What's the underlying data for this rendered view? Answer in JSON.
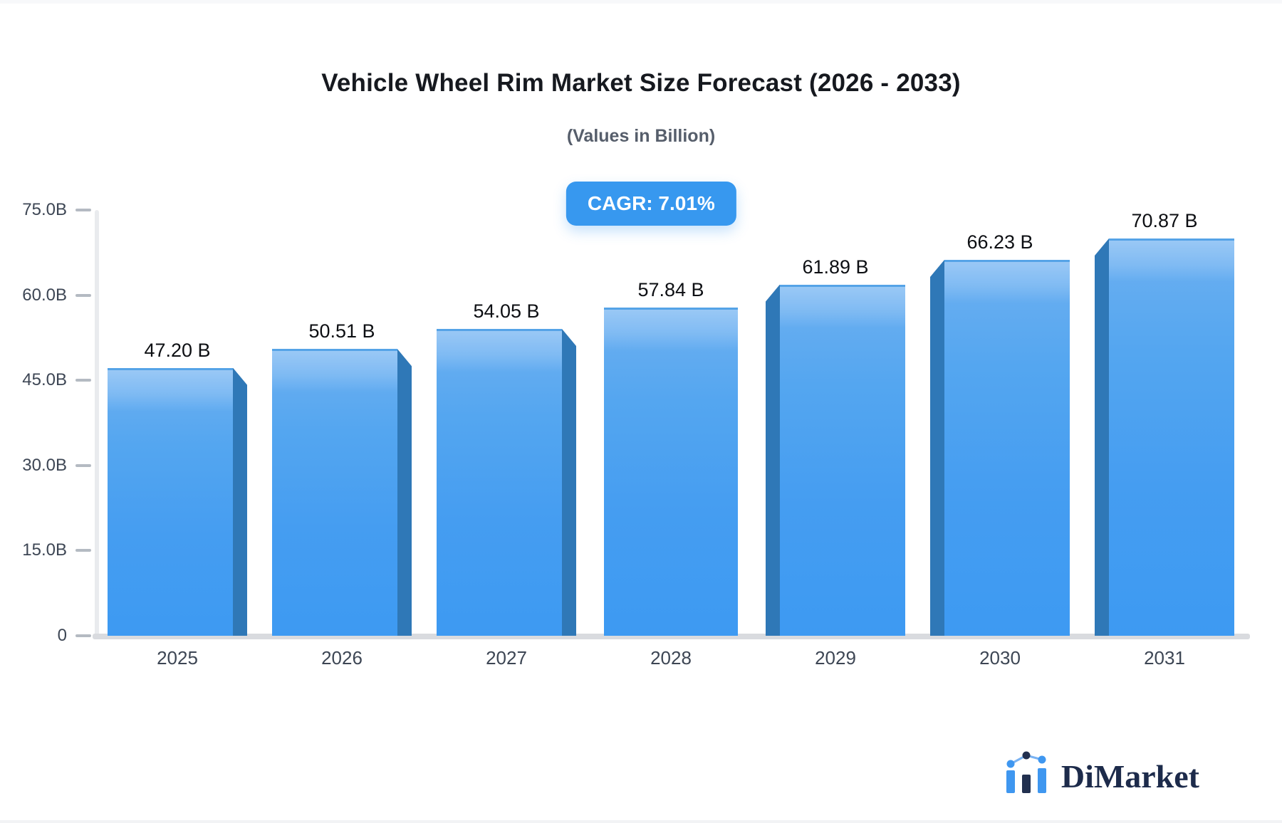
{
  "chart_data": {
    "type": "bar",
    "title": "Vehicle Wheel Rim Market Size Forecast (2026 - 2033)",
    "subtitle": "(Values in Billion)",
    "badge": "CAGR: 7.01%",
    "categories": [
      "2025",
      "2026",
      "2027",
      "2028",
      "2029",
      "2030",
      "2031"
    ],
    "values": [
      47.2,
      50.51,
      54.05,
      57.84,
      61.89,
      66.23,
      70.87
    ],
    "labels": [
      "47.20 B",
      "50.51 B",
      "54.05 B",
      "57.84 B",
      "61.89 B",
      "66.23 B",
      "70.87 B"
    ],
    "yticks": [
      "75.0B",
      "60.0B",
      "45.0B",
      "30.0B",
      "15.0B",
      "0"
    ],
    "ylim": [
      0,
      75
    ],
    "grid": false,
    "legend": "none",
    "bar_color": "#459df1",
    "bar_side_color": "#2f78b7",
    "accent_color": "#3798ef"
  },
  "logo": {
    "text": "DiMarket"
  }
}
